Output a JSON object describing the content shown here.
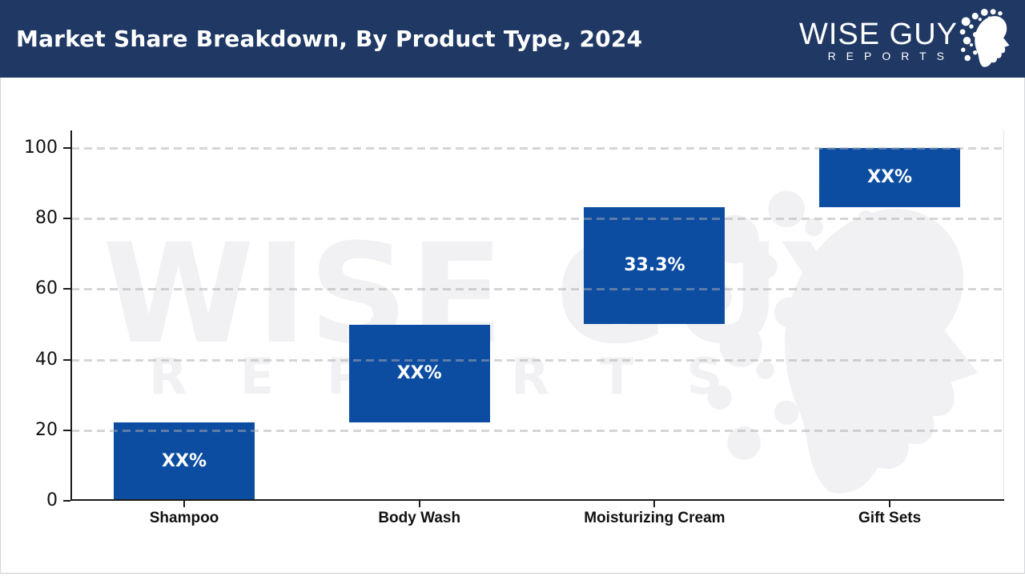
{
  "header": {
    "title": "Market Share Breakdown, By Product Type, 2024",
    "logo": {
      "name": "WISE GUY",
      "subtitle": "REPORTS"
    }
  },
  "watermark": {
    "name": "WISE GUY",
    "subtitle": "REPORTS"
  },
  "colors": {
    "header_bg": "#1f3864",
    "bar": "#0c4da2",
    "bar_label": "#ffffff",
    "axis": "#1a1a1a",
    "watermark": "#f1f1f4"
  },
  "chart_data": {
    "type": "bar",
    "variant": "waterfall",
    "title": "Market Share Breakdown, By Product Type, 2024",
    "categories": [
      "Shampoo",
      "Body Wash",
      "Moisturizing Cream",
      "Gift Sets"
    ],
    "segments": [
      {
        "category": "Shampoo",
        "start": 0,
        "end": 22.2,
        "label": "XX%"
      },
      {
        "category": "Body Wash",
        "start": 22.2,
        "end": 50,
        "label": "XX%"
      },
      {
        "category": "Moisturizing Cream",
        "start": 50,
        "end": 83.3,
        "label": "33.3%"
      },
      {
        "category": "Gift Sets",
        "start": 83.3,
        "end": 100,
        "label": "XX%"
      }
    ],
    "ylim": [
      0,
      105
    ],
    "yticks": [
      0,
      20,
      40,
      60,
      80,
      100
    ],
    "xlabel": "",
    "ylabel": "",
    "grid": "horizontal-dashed",
    "legend": "none",
    "bar_color": "#0c4da2"
  }
}
